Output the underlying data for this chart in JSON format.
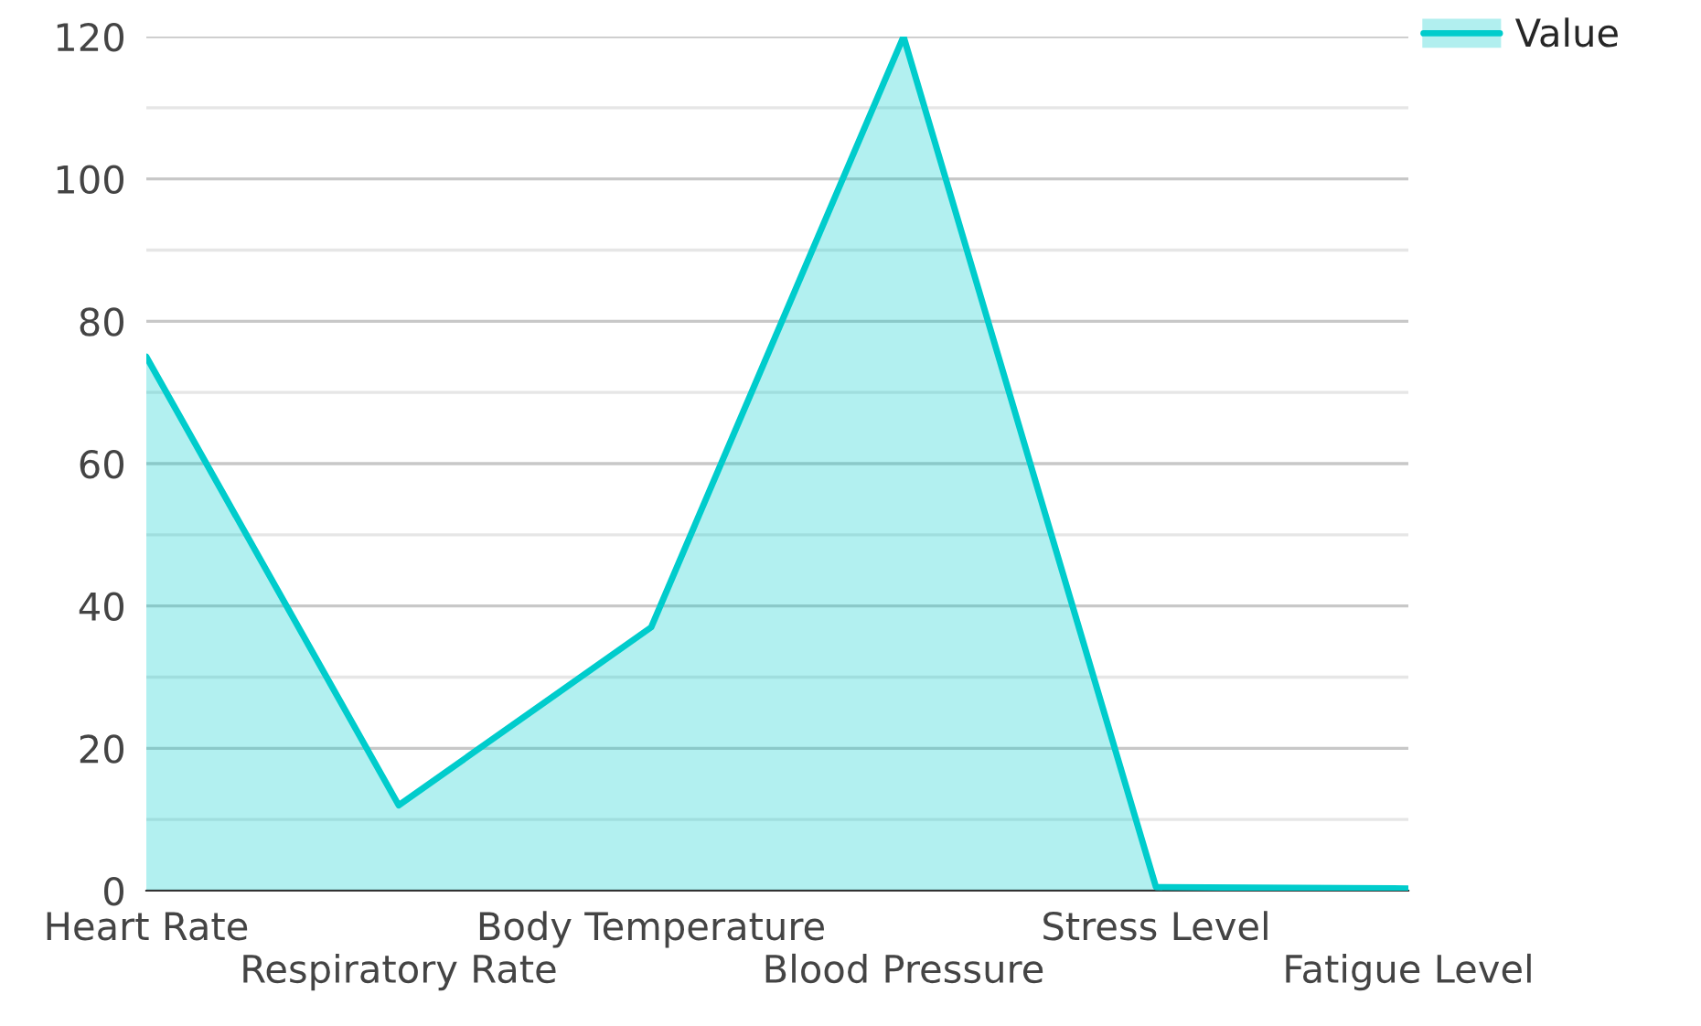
{
  "chart_data": {
    "type": "area",
    "categories": [
      "Heart Rate",
      "Respiratory Rate",
      "Body Temperature",
      "Blood Pressure",
      "Stress Level",
      "Fatigue Level"
    ],
    "series": [
      {
        "name": "Value",
        "color": "#00cccc",
        "values": [
          75,
          12,
          37,
          120,
          0.5,
          0.3
        ]
      }
    ],
    "ylim": [
      0,
      120
    ],
    "yticks": [
      0,
      20,
      40,
      60,
      80,
      100,
      120
    ],
    "grid": "y",
    "legend": "top right"
  }
}
